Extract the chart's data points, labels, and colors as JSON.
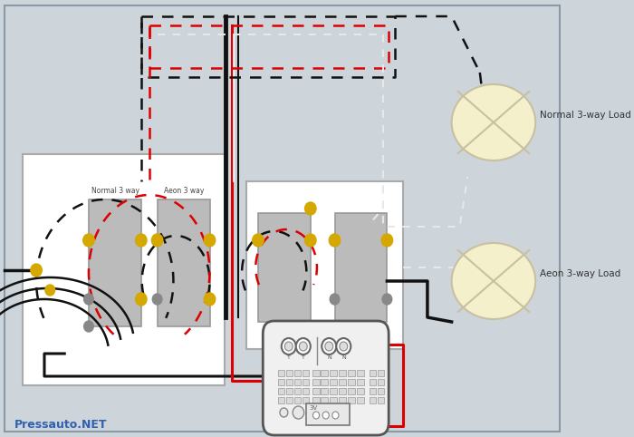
{
  "bg_color": "#cdd4da",
  "watermark": "Pressauto.NET",
  "watermark_color": "#3060b0",
  "switch1_label": "Normal 3 way",
  "switch2_label": "Aeon 3 way",
  "load1_label": "Normal 3-way Load",
  "load2_label": "Aeon 3-way Load",
  "red_wire": "#dd0000",
  "black_wire": "#111111",
  "white_wire_dash": "#e8e8e8",
  "yellow_dot": "#d4a800",
  "gray_dot": "#888888",
  "cream": "#f5f0cc",
  "cream_edge": "#c8c0a0"
}
